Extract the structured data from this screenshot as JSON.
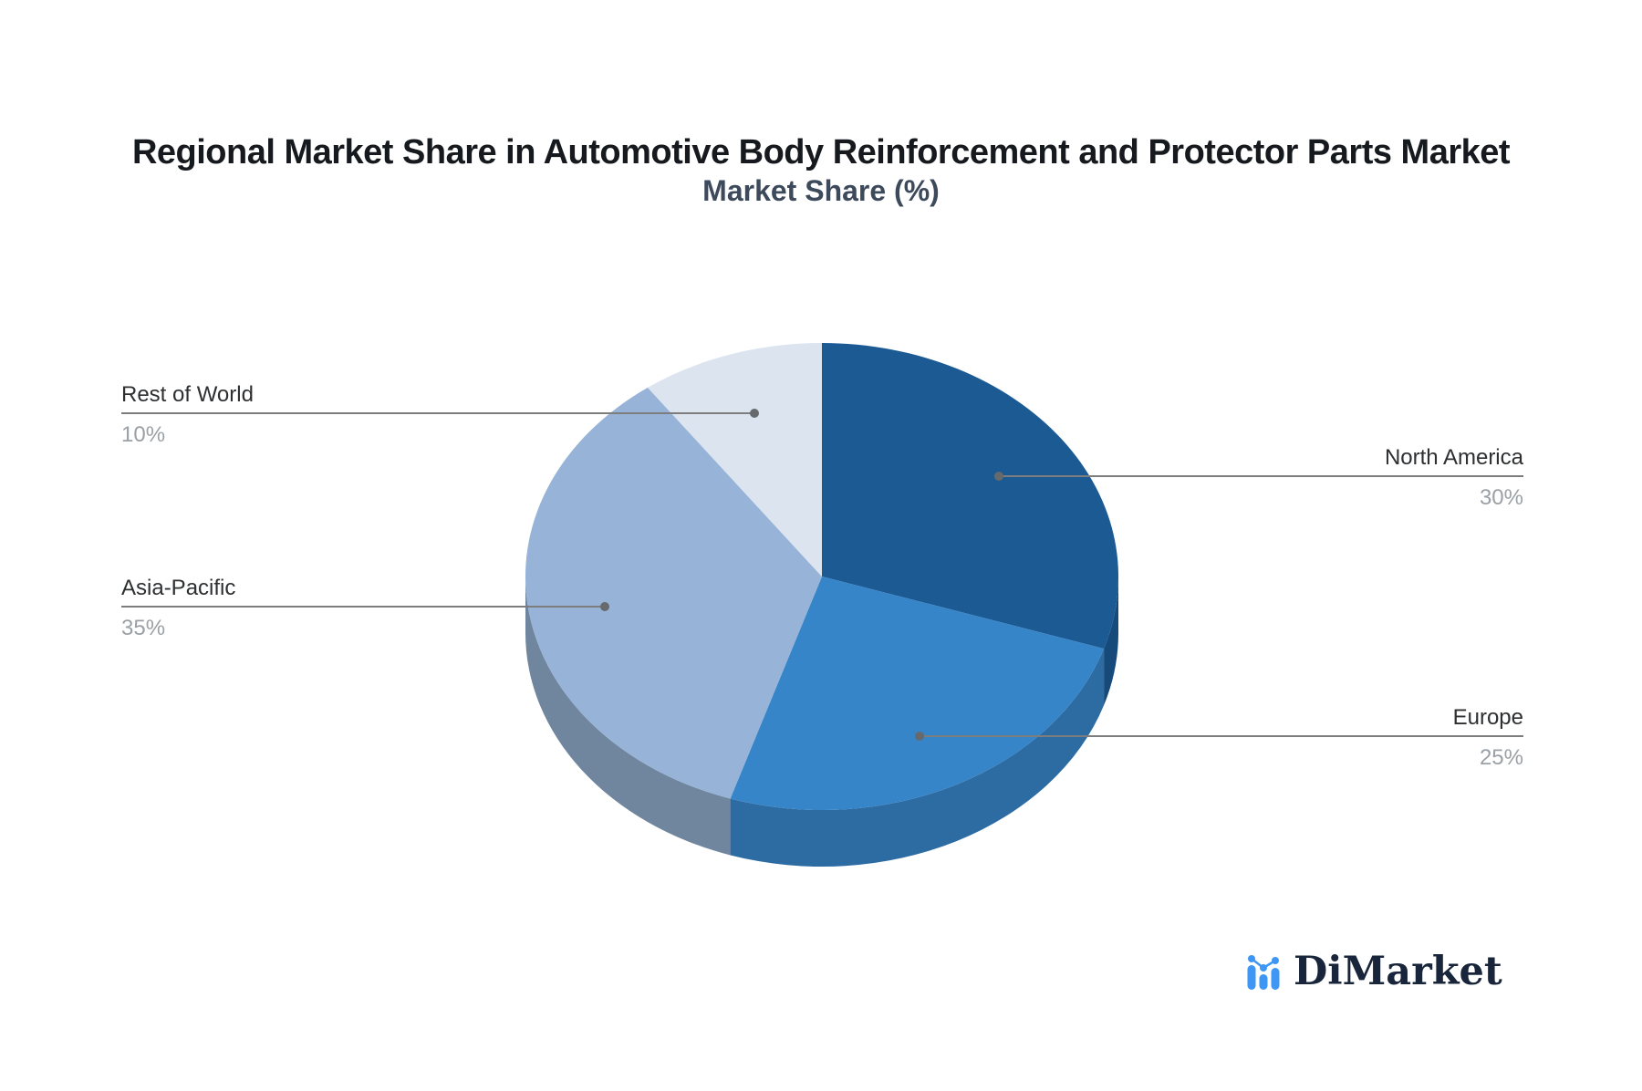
{
  "header": {
    "title": "Regional Market Share in Automotive Body Reinforcement and Protector Parts Market",
    "subtitle": "Market Share (%)"
  },
  "chart_data": {
    "type": "pie",
    "title": "Regional Market Share in Automotive Body Reinforcement and Protector Parts Market",
    "subtitle": "Market Share (%)",
    "unit": "%",
    "effect": "3d",
    "start_angle_deg": 0,
    "direction": "clockwise",
    "legend_position": "none",
    "labels": [
      "North America",
      "Europe",
      "Asia-Pacific",
      "Rest of World"
    ],
    "values": [
      30,
      25,
      35,
      10
    ],
    "colors": [
      "#1c5a94",
      "#3685c9",
      "#97b4d8",
      "#dce4ef"
    ],
    "side_colors": [
      "#164a7b",
      "#2d6ba3",
      "#70859e",
      "#b9c4d4"
    ]
  },
  "callouts": [
    {
      "label": "Rest of World",
      "value": "10%",
      "side": "left"
    },
    {
      "label": "Asia-Pacific",
      "value": "35%",
      "side": "left"
    },
    {
      "label": "North America",
      "value": "30%",
      "side": "right"
    },
    {
      "label": "Europe",
      "value": "25%",
      "side": "right"
    }
  ],
  "logo": {
    "text": "DiMarket",
    "icon": "bar-line-chart-icon",
    "accent_color": "#3e97f4",
    "text_color": "#19253a"
  },
  "colors": {
    "background": "#ffffff",
    "title": "#16191d",
    "subtitle": "#3d4a5c",
    "callout_label": "#2d2f31",
    "callout_value": "#9aa0a5",
    "leader_line": "#7d7d7d"
  }
}
